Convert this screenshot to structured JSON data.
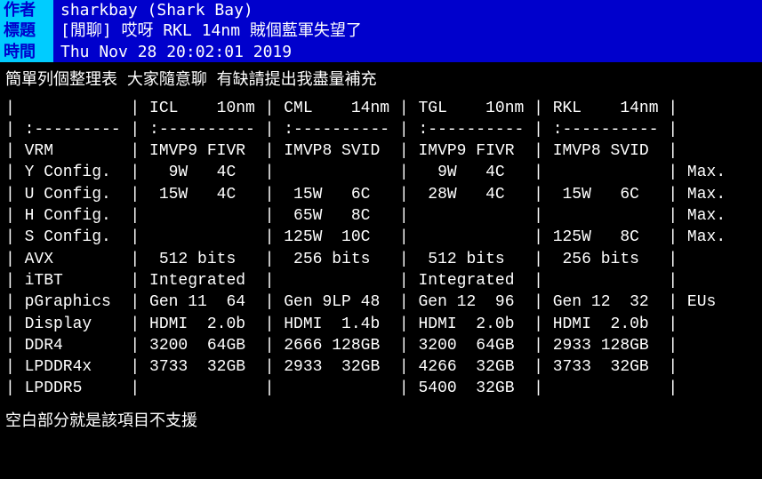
{
  "header": {
    "author_label": "作者",
    "title_label": "標題",
    "time_label": "時間",
    "author": "sharkbay (Shark Bay)",
    "title": "[閒聊] 哎呀 RKL 14nm 賊個藍軍失望了",
    "time": "Thu Nov 28 20:02:01 2019"
  },
  "intro": "簡單列個整理表 大家隨意聊  有缺請提出我盡量補充",
  "footer": "空白部分就是該項目不支援",
  "table": {
    "columns": [
      {
        "name": "ICL",
        "process": "10nm"
      },
      {
        "name": "CML",
        "process": "14nm"
      },
      {
        "name": "TGL",
        "process": "10nm"
      },
      {
        "name": "RKL",
        "process": "14nm"
      }
    ],
    "rows": [
      {
        "label": "VRM",
        "c": [
          "IMVP9 FIVR",
          "IMVP8 SVID",
          "IMVP9 FIVR",
          "IMVP8 SVID"
        ],
        "ext": ""
      },
      {
        "label": "Y Config.",
        "c": [
          "  9W   4C",
          "",
          "  9W   4C",
          ""
        ],
        "ext": "Max."
      },
      {
        "label": "U Config.",
        "c": [
          " 15W   4C",
          " 15W   6C",
          " 28W   4C",
          " 15W   6C"
        ],
        "ext": "Max."
      },
      {
        "label": "H Config.",
        "c": [
          "",
          " 65W   8C",
          "",
          ""
        ],
        "ext": "Max."
      },
      {
        "label": "S Config.",
        "c": [
          "",
          "125W  10C",
          "",
          "125W   8C"
        ],
        "ext": "Max."
      },
      {
        "label": "AVX",
        "c": [
          " 512 bits",
          " 256 bits",
          " 512 bits",
          " 256 bits"
        ],
        "ext": ""
      },
      {
        "label": "iTBT",
        "c": [
          "Integrated",
          "",
          "Integrated",
          ""
        ],
        "ext": ""
      },
      {
        "label": "pGraphics",
        "c": [
          "Gen 11  64",
          "Gen 9LP 48",
          "Gen 12  96",
          "Gen 12  32"
        ],
        "ext": "EUs"
      },
      {
        "label": "Display",
        "c": [
          "HDMI  2.0b",
          "HDMI  1.4b",
          "HDMI  2.0b",
          "HDMI  2.0b"
        ],
        "ext": ""
      },
      {
        "label": "DDR4",
        "c": [
          "3200  64GB",
          "2666 128GB",
          "3200  64GB",
          "2933 128GB"
        ],
        "ext": ""
      },
      {
        "label": "LPDDR4x",
        "c": [
          "3733  32GB",
          "2933  32GB",
          "4266  32GB",
          "3733  32GB"
        ],
        "ext": ""
      },
      {
        "label": "LPDDR5",
        "c": [
          "",
          "",
          "5400  32GB",
          ""
        ],
        "ext": ""
      }
    ],
    "col_widths": {
      "label": 11,
      "cell": 12
    }
  },
  "colors": {
    "bg": "#000000",
    "fg": "#ffffff",
    "header_bg": "#0000cc",
    "label_bg": "#00ccff",
    "label_fg": "#0000cc"
  }
}
